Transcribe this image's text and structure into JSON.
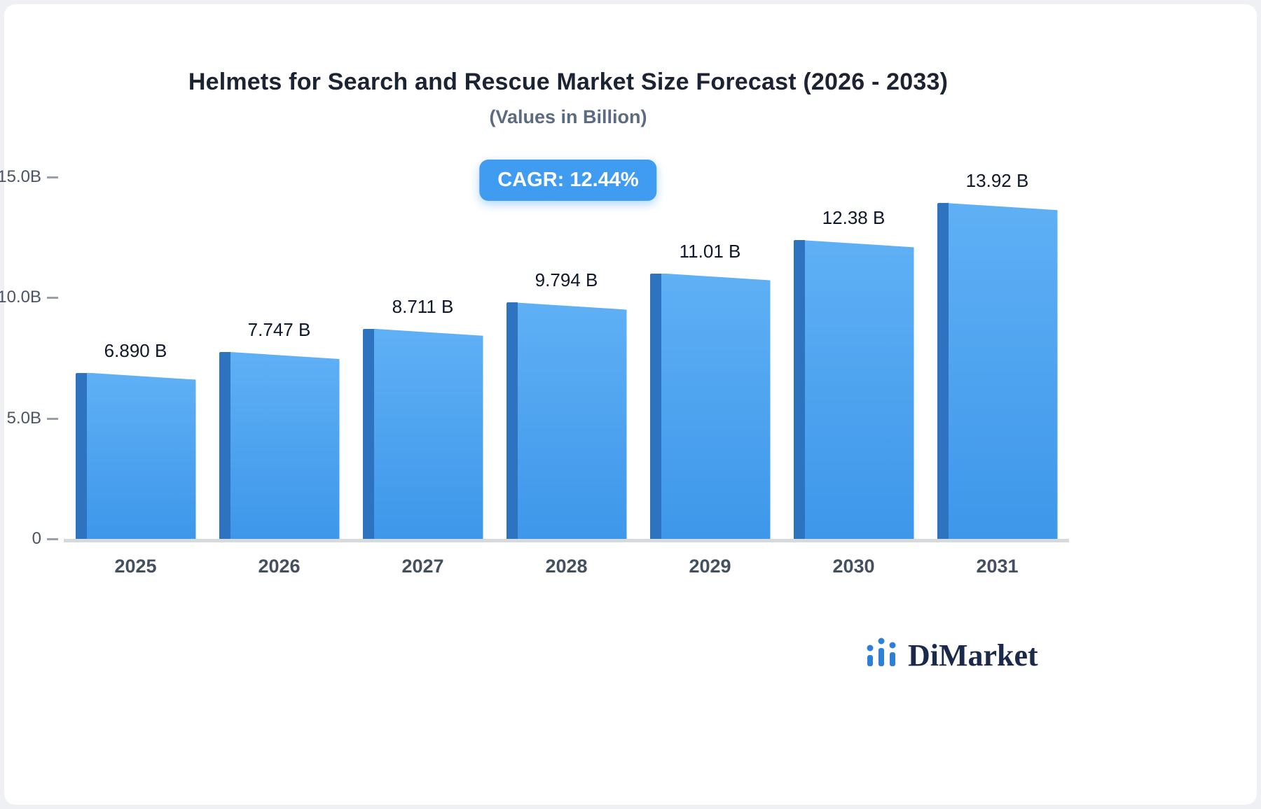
{
  "header": {
    "note": ""
  },
  "logo": {
    "text": "DiMarket"
  },
  "chart_data": {
    "type": "bar",
    "title": "Helmets for Search and Rescue Market Size Forecast (2026 - 2033)",
    "subtitle": "(Values in Billion)",
    "cagr": "CAGR: 12.44%",
    "categories": [
      "2025",
      "2026",
      "2027",
      "2028",
      "2029",
      "2030",
      "2031"
    ],
    "values": [
      6.89,
      7.747,
      8.711,
      9.794,
      11.01,
      12.38,
      13.92
    ],
    "value_labels": [
      "6.890 B",
      "7.747 B",
      "8.711 B",
      "9.794 B",
      "11.01 B",
      "12.38 B",
      "13.92 B"
    ],
    "ylabel": "",
    "xlabel": "",
    "ylim": [
      0,
      15
    ],
    "yticks": [
      {
        "value": 0,
        "label": "0"
      },
      {
        "value": 5,
        "label": "5.0B"
      },
      {
        "value": 10,
        "label": "10.0B"
      },
      {
        "value": 15,
        "label": "15.0B"
      }
    ],
    "grid": false,
    "legend": false,
    "colors": {
      "bar_front_top": "#5fb0f5",
      "bar_front_bottom": "#3e97ea",
      "bar_side": "#2d73c0",
      "axis_line": "#d7dadd",
      "accent_badge": "#3f9cf0",
      "logo_blue": "#2e7fd6",
      "logo_navy": "#1b2a4a"
    }
  }
}
